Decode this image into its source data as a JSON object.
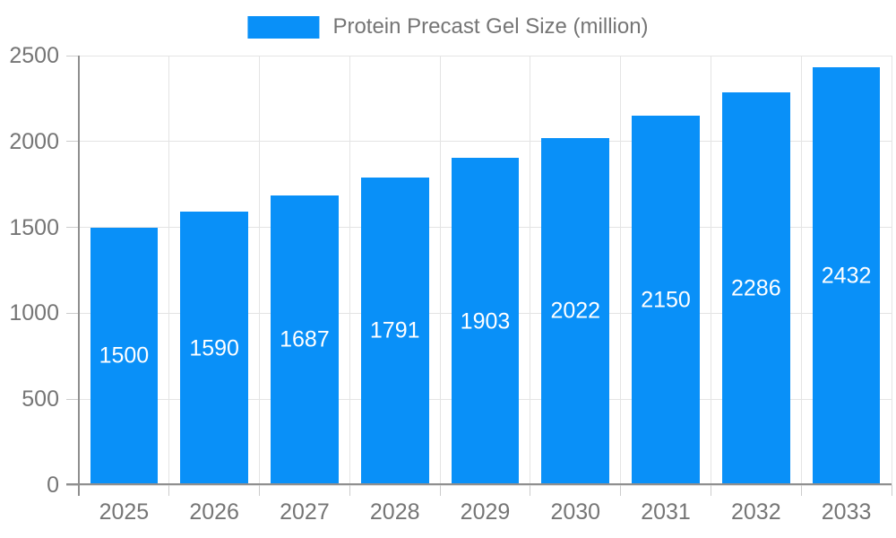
{
  "chart_data": {
    "type": "bar",
    "title": "Protein Precast Gel Size (million)",
    "categories": [
      "2025",
      "2026",
      "2027",
      "2028",
      "2029",
      "2030",
      "2031",
      "2032",
      "2033"
    ],
    "values": [
      1500,
      1590,
      1687,
      1791,
      1903,
      2022,
      2150,
      2286,
      2432
    ],
    "xlabel": "",
    "ylabel": "",
    "ylim": [
      0,
      2500
    ],
    "yticks": [
      0,
      500,
      1000,
      1500,
      2000,
      2500
    ],
    "grid": true,
    "legend_position": "top-center",
    "bar_label_position": "center",
    "bar_width_fraction": 0.75,
    "colors": {
      "bar": "#0990f8",
      "grid": "#e4e4e4",
      "tick": "#cccccc",
      "axis": "#8f8f8f",
      "tick_text": "#757575",
      "bar_label_text": "#ffffff",
      "background": "#ffffff"
    }
  }
}
